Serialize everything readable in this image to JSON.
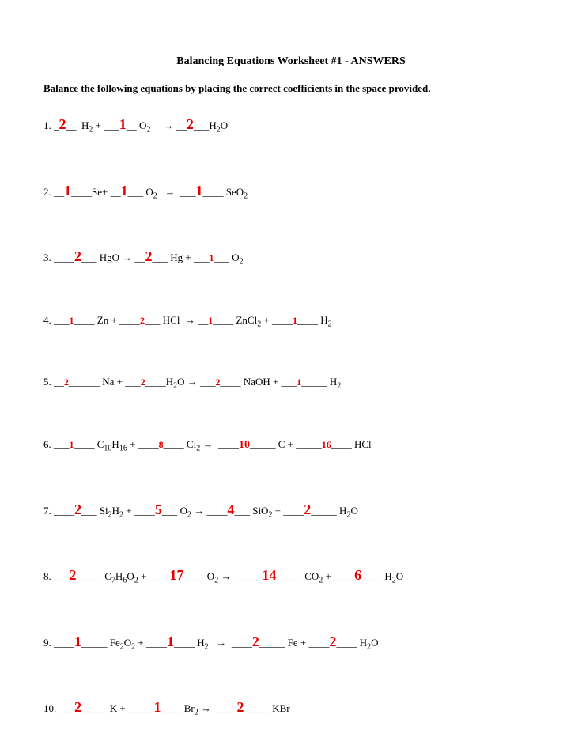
{
  "title": "Balancing Equations Worksheet #1 - ANSWERS",
  "instructions": "Balance the following equations by placing the correct coefficients in the space provided.",
  "answer_color": "#e60000",
  "text_color": "#000000",
  "background_color": "#ffffff",
  "font_family": "Times New Roman",
  "title_fontsize": 14,
  "body_fontsize": 13,
  "answer_fontsize_large": 18,
  "answer_fontsize_medium": 14,
  "answer_fontsize_small": 12,
  "equations": [
    {
      "n": "1",
      "a": [
        "2",
        "1",
        "2"
      ],
      "sizes": [
        "big",
        "big",
        "big"
      ],
      "parts": [
        "H₂",
        "O₂",
        "H₂O"
      ],
      "ops": [
        "+",
        "→"
      ]
    },
    {
      "n": "2",
      "a": [
        "1",
        "1",
        "1"
      ],
      "sizes": [
        "big",
        "big",
        "big"
      ],
      "parts": [
        "Se",
        "O₂",
        "SeO₂"
      ],
      "ops": [
        "+",
        "→"
      ]
    },
    {
      "n": "3",
      "a": [
        "2",
        "2",
        "1"
      ],
      "sizes": [
        "big",
        "big",
        "sm"
      ],
      "parts": [
        "HgO",
        "Hg",
        "O₂"
      ],
      "ops": [
        "→",
        "+"
      ]
    },
    {
      "n": "4",
      "a": [
        "1",
        "2",
        "1",
        "1"
      ],
      "sizes": [
        "sm",
        "sm",
        "sm",
        "sm"
      ],
      "parts": [
        "Zn",
        "HCl",
        "ZnCl₂",
        "H₂"
      ],
      "ops": [
        "+",
        "→",
        "+"
      ]
    },
    {
      "n": "5",
      "a": [
        "2",
        "2",
        "2",
        "1"
      ],
      "sizes": [
        "sm",
        "sm",
        "sm",
        "sm"
      ],
      "parts": [
        "Na",
        "H₂O",
        "NaOH",
        "H₂"
      ],
      "ops": [
        "+",
        "→",
        "+"
      ]
    },
    {
      "n": "6",
      "a": [
        "1",
        "8",
        "10",
        "16"
      ],
      "sizes": [
        "sm",
        "sm",
        "med",
        "sm"
      ],
      "parts": [
        "C₁₀H₁₆",
        "Cl₂",
        "C",
        "HCl"
      ],
      "ops": [
        "+",
        "→",
        "+"
      ]
    },
    {
      "n": "7",
      "a": [
        "2",
        "5",
        "4",
        "2"
      ],
      "sizes": [
        "big",
        "big",
        "big",
        "big"
      ],
      "parts": [
        "Si₂H₂",
        "O₂",
        "SiO₂",
        "H₂O"
      ],
      "ops": [
        "+",
        "→",
        "+"
      ]
    },
    {
      "n": "8",
      "a": [
        "2",
        "17",
        "14",
        "6"
      ],
      "sizes": [
        "big",
        "big",
        "big",
        "big"
      ],
      "parts": [
        "C₇H₆O₂",
        "O₂",
        "CO₂",
        "H₂O"
      ],
      "ops": [
        "+",
        "→",
        "+"
      ]
    },
    {
      "n": "9",
      "a": [
        "1",
        "1",
        "2",
        "2"
      ],
      "sizes": [
        "big",
        "big",
        "big",
        "big"
      ],
      "parts": [
        "Fe₂O₂",
        "H₂",
        "Fe",
        "H₂O"
      ],
      "ops": [
        "+",
        "→",
        "+"
      ]
    },
    {
      "n": "10",
      "a": [
        "2",
        "1",
        "2"
      ],
      "sizes": [
        "big",
        "big",
        "big"
      ],
      "parts": [
        "K",
        "Br₂",
        "KBr"
      ],
      "ops": [
        "+",
        "→"
      ]
    }
  ]
}
